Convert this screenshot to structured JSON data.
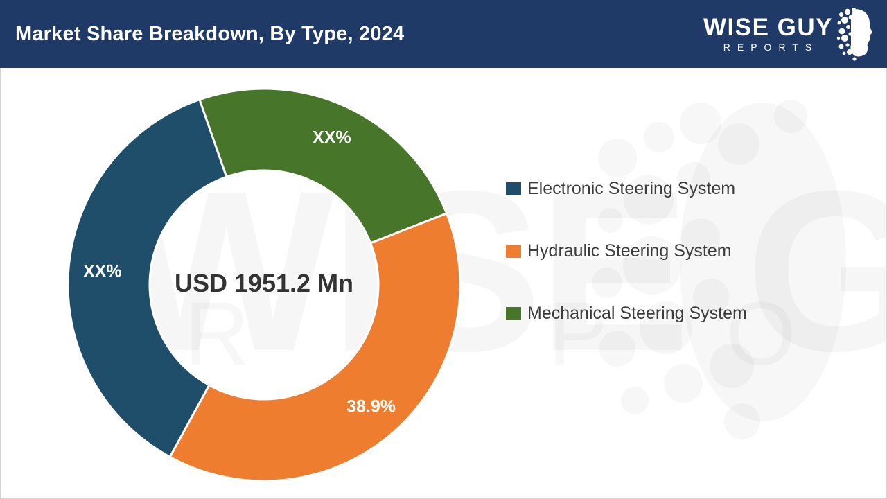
{
  "header": {
    "title": "Market Share Breakdown, By Type, 2024",
    "background_color": "#203A67",
    "logo": {
      "line1": "WISE GUY",
      "line2": "REPORTS"
    }
  },
  "watermark": {
    "line1": "WISE GUY",
    "line2": "R E P O R T S"
  },
  "chart_data": {
    "type": "pie",
    "subtype": "donut",
    "title": "Market Share Breakdown, By Type, 2024",
    "center_label": "USD 1951.2 Mn",
    "start_angle_deg": -19.2,
    "rotation": "clockwise",
    "segments": [
      {
        "name": "Mechanical Steering System",
        "value_label": "XX%",
        "percent": 24.4,
        "color": "#47762A"
      },
      {
        "name": "Hydraulic Steering System",
        "value_label": "38.9%",
        "percent": 38.9,
        "color": "#EE7D30"
      },
      {
        "name": "Electronic Steering System",
        "value_label": "XX%",
        "percent": 36.7,
        "color": "#1F4E6B"
      }
    ],
    "legend_position": "right",
    "notes": "Unlabeled segments shown as XX% in source image; percents estimated from arc angles."
  },
  "legend": {
    "items": [
      {
        "label": "Electronic Steering System",
        "color": "#1F4E6B"
      },
      {
        "label": "Hydraulic Steering System",
        "color": "#EE7D30"
      },
      {
        "label": "Mechanical Steering System",
        "color": "#47762A"
      }
    ]
  }
}
